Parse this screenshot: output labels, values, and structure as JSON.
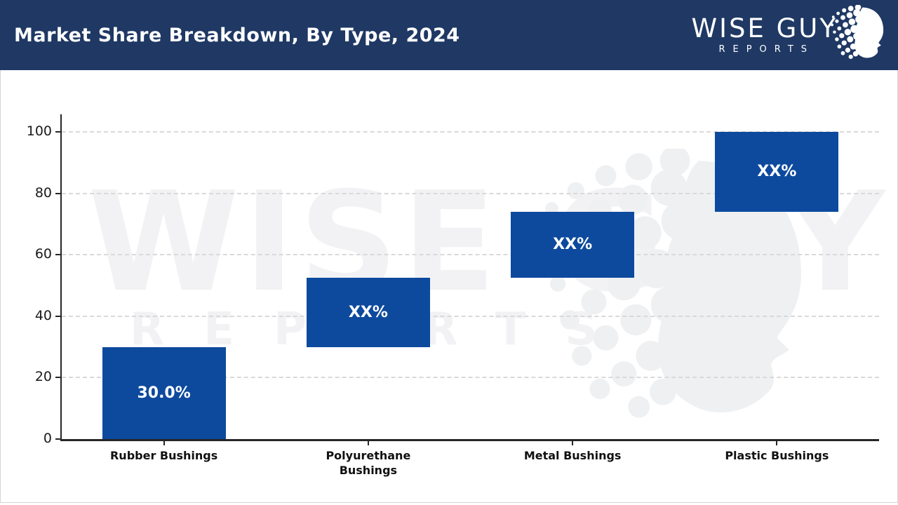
{
  "header": {
    "title": "Market Share Breakdown, By Type, 2024",
    "background_color": "#1f3864",
    "logo": {
      "wordmark": "WISE GUY",
      "subtitle": "REPORTS"
    }
  },
  "watermark": {
    "wordmark": "WISE GUY",
    "subtitle": "REPORTS"
  },
  "chart_data": {
    "type": "bar",
    "subtype": "waterfall",
    "title": "Market Share Breakdown, By Type, 2024",
    "categories": [
      "Rubber Bushings",
      "Polyurethane Bushings",
      "Metal Bushings",
      "Plastic Bushings"
    ],
    "segments": [
      {
        "category": "Rubber Bushings",
        "start": 0,
        "end": 30,
        "value": 30.0,
        "label": "30.0%"
      },
      {
        "category": "Polyurethane Bushings",
        "start": 30,
        "end": 52.5,
        "value": 22.5,
        "label": "XX%"
      },
      {
        "category": "Metal Bushings",
        "start": 52.5,
        "end": 74,
        "value": 21.5,
        "label": "XX%"
      },
      {
        "category": "Plastic Bushings",
        "start": 74,
        "end": 100,
        "value": 26.0,
        "label": "XX%"
      }
    ],
    "xlabel": "",
    "ylabel": "",
    "ylim": [
      0,
      100
    ],
    "yticks": [
      0,
      20,
      40,
      60,
      80,
      100
    ],
    "grid": "horizontal-dashed",
    "legend": "none",
    "bar_color": "#0d4a9e",
    "bar_label_color": "#ffffff"
  }
}
